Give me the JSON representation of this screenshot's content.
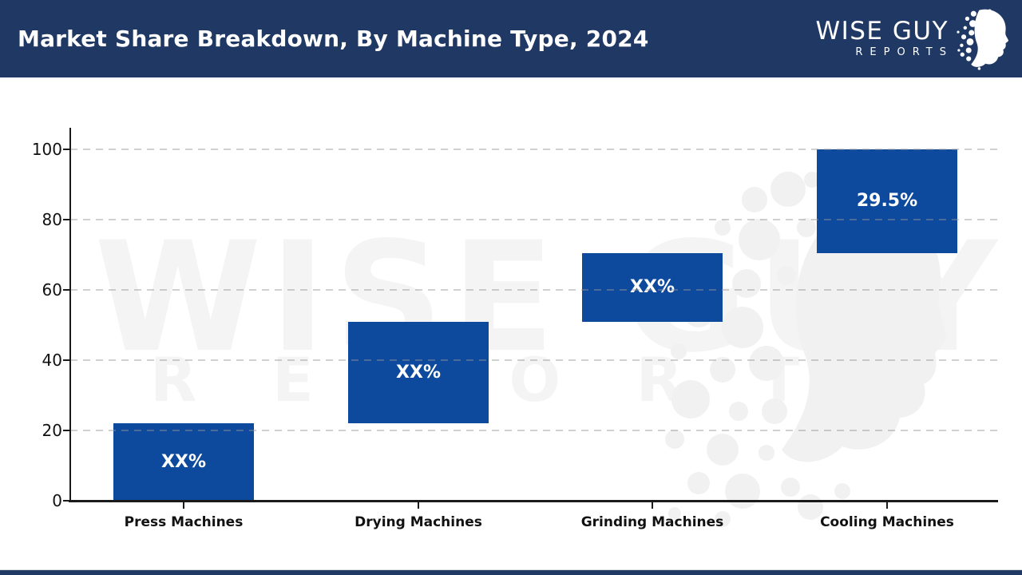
{
  "header": {
    "title": "Market Share Breakdown, By Machine Type, 2024",
    "logo": {
      "line1": "WISE GUY",
      "line2": "REPORTS"
    }
  },
  "watermark": {
    "line1": "WISE GUY",
    "line2": "R E P O R T S"
  },
  "colors": {
    "header_bg": "#203864",
    "bar": "#0d4a9d",
    "axis": "#1a1a1a",
    "grid": "#c8c8c8",
    "watermark": "#f4f4f4",
    "value_label": "#ffffff",
    "footer_bar": "#203864"
  },
  "chart_data": {
    "type": "bar",
    "subtype": "floating-waterfall",
    "title": "Market Share Breakdown, By Machine Type, 2024",
    "categories": [
      "Press Machines",
      "Drying Machines",
      "Grinding Machines",
      "Cooling Machines"
    ],
    "segments": [
      {
        "label": "Press Machines",
        "start": 0,
        "end": 22,
        "height": 22,
        "value_label": "XX%"
      },
      {
        "label": "Drying Machines",
        "start": 22,
        "end": 51,
        "height": 29,
        "value_label": "XX%"
      },
      {
        "label": "Grinding Machines",
        "start": 51,
        "end": 70.5,
        "height": 19.5,
        "value_label": "XX%"
      },
      {
        "label": "Cooling Machines",
        "start": 70.5,
        "end": 100,
        "height": 29.5,
        "value_label": "29.5%"
      }
    ],
    "yticks": [
      0,
      20,
      40,
      60,
      80,
      100
    ],
    "ylim": [
      0,
      106
    ],
    "xlabel": "",
    "ylabel": "",
    "grid": "horizontal dashed, drawn over bars",
    "legend": "none"
  }
}
